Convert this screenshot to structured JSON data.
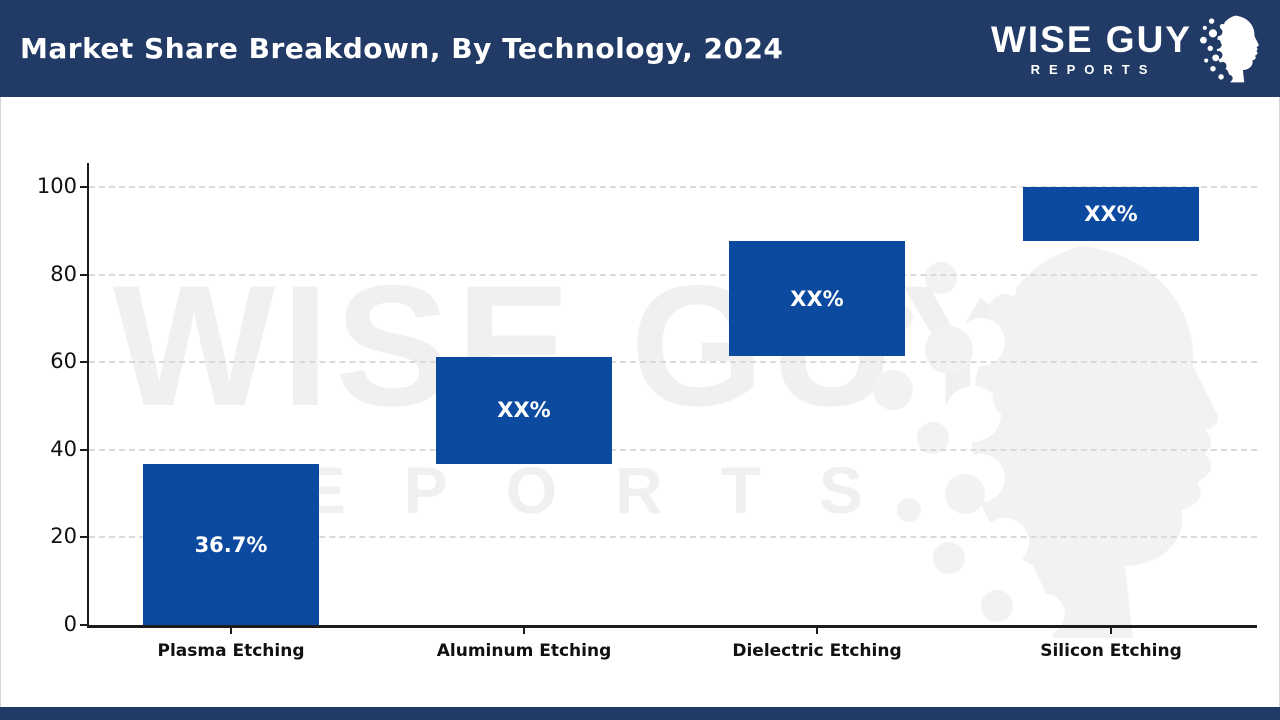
{
  "header": {
    "title": "Market Share Breakdown, By Technology, 2024",
    "bg_color": "#213a66",
    "logo": {
      "main": "WISE GUY",
      "sub": "REPORTS"
    }
  },
  "watermark": {
    "main": "WISE GUY",
    "sub": "REPORTS"
  },
  "chart_data": {
    "type": "bar",
    "subtype": "waterfall",
    "title": "Market Share Breakdown, By Technology, 2024",
    "categories": [
      "Plasma Etching",
      "Aluminum Etching",
      "Dielectric Etching",
      "Silicon Etching"
    ],
    "segments": [
      {
        "category": "Plasma Etching",
        "start": 0,
        "end": 36.7,
        "label": "36.7%"
      },
      {
        "category": "Aluminum Etching",
        "start": 36.7,
        "end": 61.3,
        "label": "XX%"
      },
      {
        "category": "Dielectric Etching",
        "start": 61.3,
        "end": 87.7,
        "label": "XX%"
      },
      {
        "category": "Silicon Etching",
        "start": 87.7,
        "end": 100,
        "label": "XX%"
      }
    ],
    "ylim": [
      0,
      100
    ],
    "yticks": [
      0,
      20,
      40,
      60,
      80,
      100
    ],
    "grid": "horizontal-dashed",
    "legend": "none",
    "bar_color": "#0b4a9e",
    "bar_label_color": "#ffffff",
    "axis_color": "#1c1c1c"
  },
  "footer": {
    "bg_color": "#213a66"
  }
}
